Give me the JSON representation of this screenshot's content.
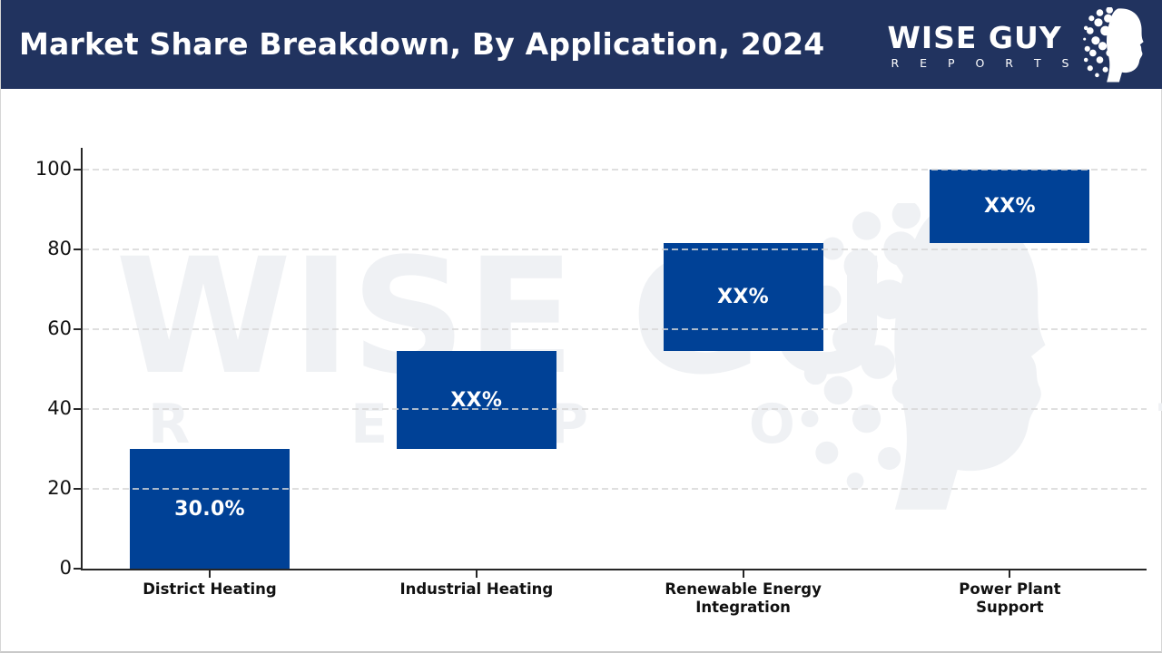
{
  "header": {
    "title": "Market Share Breakdown, By Application, 2024",
    "logo": {
      "line1": "WISE GUY",
      "line2": "R E P O R T S"
    }
  },
  "watermark": {
    "line1": "WISE GUY",
    "line2": "R E P O R T S"
  },
  "colors": {
    "header_bg": "#21335f",
    "bar": "#004196",
    "grid": "#d7d7d7",
    "axis": "#262626",
    "watermark": "#eff1f4",
    "title_text": "#ffffff",
    "bar_label_text": "#ffffff"
  },
  "chart_data": {
    "type": "bar",
    "subtype": "waterfall",
    "title": "Market Share Breakdown, By Application, 2024",
    "categories": [
      "District Heating",
      "Industrial Heating",
      "Renewable Energy Integration",
      "Power Plant Support"
    ],
    "categories_display": [
      [
        "District Heating"
      ],
      [
        "Industrial Heating"
      ],
      [
        "Renewable Energy",
        "Integration"
      ],
      [
        "Power Plant",
        "Support"
      ]
    ],
    "segments": [
      {
        "category": "District Heating",
        "start": 0,
        "end": 30,
        "label": "30.0%"
      },
      {
        "category": "Industrial Heating",
        "start": 30,
        "end": 54.5,
        "label": "XX%"
      },
      {
        "category": "Renewable Energy Integration",
        "start": 54.5,
        "end": 81.5,
        "label": "XX%"
      },
      {
        "category": "Power Plant Support",
        "start": 81.5,
        "end": 100,
        "label": "XX%"
      }
    ],
    "yticks": [
      0,
      20,
      40,
      60,
      80,
      100
    ],
    "ylim": [
      0,
      105.5
    ],
    "xlabel": "",
    "ylabel": "",
    "grid": "horizontal-dashed",
    "legend": "none"
  }
}
